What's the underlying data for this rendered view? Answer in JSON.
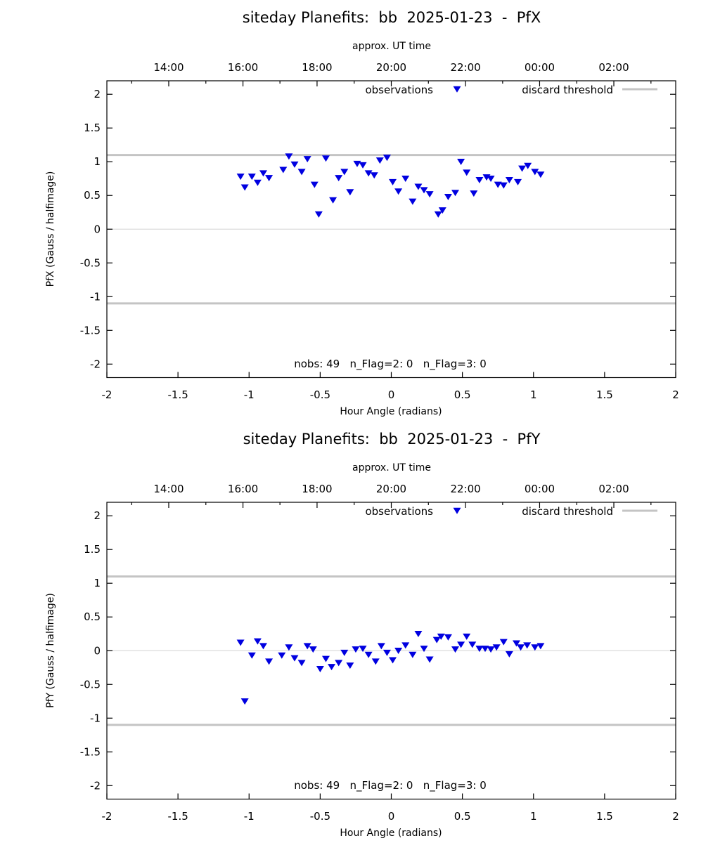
{
  "page": {
    "background": "#ffffff",
    "frame_color": "#000000",
    "marker_color": "#0000e0",
    "threshold_color": "#c4c4c4",
    "zero_line_color": "#dcdcdc"
  },
  "chart_data": [
    {
      "type": "scatter",
      "title": "siteday Planefits:  bb  2025-01-23  -  PfX",
      "top_axis_label": "approx. UT time",
      "xlabel": "Hour Angle (radians)",
      "ylabel": "PfX (Gauss / halfimage)",
      "xlim": [
        -2,
        2
      ],
      "ylim": [
        -2.2,
        2.2
      ],
      "x_ticks": [
        -2,
        -1.5,
        -1,
        -0.5,
        0,
        0.5,
        1,
        1.5,
        2
      ],
      "x_tick_labels": [
        "-2",
        "-1.5",
        "-1",
        "-0.5",
        "0",
        "0.5",
        "1",
        "1.5",
        "2"
      ],
      "y_ticks": [
        2,
        1.5,
        1,
        0.5,
        0,
        -0.5,
        -1,
        -1.5,
        -2
      ],
      "y_tick_labels": [
        "2",
        "1.5",
        "1",
        "0.5",
        "0",
        "-0.5",
        "-1",
        "-1.5",
        "-2"
      ],
      "ut_axis": {
        "tick_labels": [
          "14:00",
          "16:00",
          "18:00",
          "20:00",
          "22:00",
          "00:00",
          "02:00"
        ],
        "tick_positions": [
          -1.565,
          -1.043,
          -0.522,
          0,
          0.522,
          1.043,
          1.565
        ],
        "minor_tick_positions": [
          -1.826,
          -1.304,
          -0.783,
          -0.261,
          0.261,
          0.783,
          1.304,
          1.826
        ]
      },
      "discard_thresholds": [
        1.1,
        -1.1
      ],
      "zero_line": 0,
      "legend": {
        "observations_label": "observations",
        "threshold_label": "discard threshold"
      },
      "annotation": "nobs: 49   n_Flag=2: 0   n_Flag=3: 0",
      "points": [
        [
          -1.06,
          0.78
        ],
        [
          -1.03,
          0.62
        ],
        [
          -0.98,
          0.78
        ],
        [
          -0.94,
          0.69
        ],
        [
          -0.9,
          0.83
        ],
        [
          -0.86,
          0.76
        ],
        [
          -0.76,
          0.88
        ],
        [
          -0.72,
          1.08
        ],
        [
          -0.68,
          0.96
        ],
        [
          -0.63,
          0.85
        ],
        [
          -0.59,
          1.04
        ],
        [
          -0.54,
          0.66
        ],
        [
          -0.51,
          0.22
        ],
        [
          -0.46,
          1.05
        ],
        [
          -0.41,
          0.43
        ],
        [
          -0.37,
          0.76
        ],
        [
          -0.33,
          0.85
        ],
        [
          -0.29,
          0.55
        ],
        [
          -0.24,
          0.97
        ],
        [
          -0.2,
          0.95
        ],
        [
          -0.16,
          0.83
        ],
        [
          -0.12,
          0.8
        ],
        [
          -0.08,
          1.02
        ],
        [
          -0.03,
          1.06
        ],
        [
          0.01,
          0.7
        ],
        [
          0.05,
          0.56
        ],
        [
          0.1,
          0.75
        ],
        [
          0.15,
          0.41
        ],
        [
          0.19,
          0.63
        ],
        [
          0.23,
          0.58
        ],
        [
          0.27,
          0.52
        ],
        [
          0.33,
          0.22
        ],
        [
          0.36,
          0.28
        ],
        [
          0.4,
          0.48
        ],
        [
          0.45,
          0.54
        ],
        [
          0.49,
          1.0
        ],
        [
          0.53,
          0.84
        ],
        [
          0.58,
          0.53
        ],
        [
          0.62,
          0.73
        ],
        [
          0.67,
          0.77
        ],
        [
          0.7,
          0.75
        ],
        [
          0.75,
          0.66
        ],
        [
          0.79,
          0.65
        ],
        [
          0.83,
          0.73
        ],
        [
          0.89,
          0.7
        ],
        [
          0.92,
          0.9
        ],
        [
          0.96,
          0.94
        ],
        [
          1.01,
          0.85
        ],
        [
          1.05,
          0.81
        ]
      ]
    },
    {
      "type": "scatter",
      "title": "siteday Planefits:  bb  2025-01-23  -  PfY",
      "top_axis_label": "approx. UT time",
      "xlabel": "Hour Angle (radians)",
      "ylabel": "PfY (Gauss / halfimage)",
      "xlim": [
        -2,
        2
      ],
      "ylim": [
        -2.2,
        2.2
      ],
      "x_ticks": [
        -2,
        -1.5,
        -1,
        -0.5,
        0,
        0.5,
        1,
        1.5,
        2
      ],
      "x_tick_labels": [
        "-2",
        "-1.5",
        "-1",
        "-0.5",
        "0",
        "0.5",
        "1",
        "1.5",
        "2"
      ],
      "y_ticks": [
        2,
        1.5,
        1,
        0.5,
        0,
        -0.5,
        -1,
        -1.5,
        -2
      ],
      "y_tick_labels": [
        "2",
        "1.5",
        "1",
        "0.5",
        "0",
        "-0.5",
        "-1",
        "-1.5",
        "-2"
      ],
      "ut_axis": {
        "tick_labels": [
          "14:00",
          "16:00",
          "18:00",
          "20:00",
          "22:00",
          "00:00",
          "02:00"
        ],
        "tick_positions": [
          -1.565,
          -1.043,
          -0.522,
          0,
          0.522,
          1.043,
          1.565
        ],
        "minor_tick_positions": [
          -1.826,
          -1.304,
          -0.783,
          -0.261,
          0.261,
          0.783,
          1.304,
          1.826
        ]
      },
      "discard_thresholds": [
        1.1,
        -1.1
      ],
      "zero_line": 0,
      "legend": {
        "observations_label": "observations",
        "threshold_label": "discard threshold"
      },
      "annotation": "nobs: 49   n_Flag=2: 0   n_Flag=3: 0",
      "points": [
        [
          -1.06,
          0.12
        ],
        [
          -1.03,
          -0.75
        ],
        [
          -0.98,
          -0.07
        ],
        [
          -0.94,
          0.14
        ],
        [
          -0.9,
          0.07
        ],
        [
          -0.86,
          -0.16
        ],
        [
          -0.77,
          -0.07
        ],
        [
          -0.72,
          0.05
        ],
        [
          -0.68,
          -0.11
        ],
        [
          -0.63,
          -0.18
        ],
        [
          -0.59,
          0.07
        ],
        [
          -0.55,
          0.02
        ],
        [
          -0.5,
          -0.27
        ],
        [
          -0.46,
          -0.12
        ],
        [
          -0.42,
          -0.24
        ],
        [
          -0.37,
          -0.18
        ],
        [
          -0.33,
          -0.03
        ],
        [
          -0.29,
          -0.22
        ],
        [
          -0.25,
          0.02
        ],
        [
          -0.2,
          0.03
        ],
        [
          -0.16,
          -0.06
        ],
        [
          -0.11,
          -0.16
        ],
        [
          -0.07,
          0.07
        ],
        [
          -0.03,
          -0.03
        ],
        [
          0.01,
          -0.14
        ],
        [
          0.05,
          0.0
        ],
        [
          0.1,
          0.08
        ],
        [
          0.15,
          -0.06
        ],
        [
          0.19,
          0.25
        ],
        [
          0.23,
          0.03
        ],
        [
          0.27,
          -0.13
        ],
        [
          0.32,
          0.16
        ],
        [
          0.35,
          0.21
        ],
        [
          0.4,
          0.2
        ],
        [
          0.45,
          0.02
        ],
        [
          0.49,
          0.09
        ],
        [
          0.53,
          0.21
        ],
        [
          0.57,
          0.09
        ],
        [
          0.62,
          0.03
        ],
        [
          0.66,
          0.03
        ],
        [
          0.7,
          0.02
        ],
        [
          0.74,
          0.05
        ],
        [
          0.79,
          0.13
        ],
        [
          0.83,
          -0.05
        ],
        [
          0.88,
          0.11
        ],
        [
          0.91,
          0.05
        ],
        [
          0.955,
          0.08
        ],
        [
          1.01,
          0.05
        ],
        [
          1.05,
          0.07
        ]
      ]
    }
  ]
}
